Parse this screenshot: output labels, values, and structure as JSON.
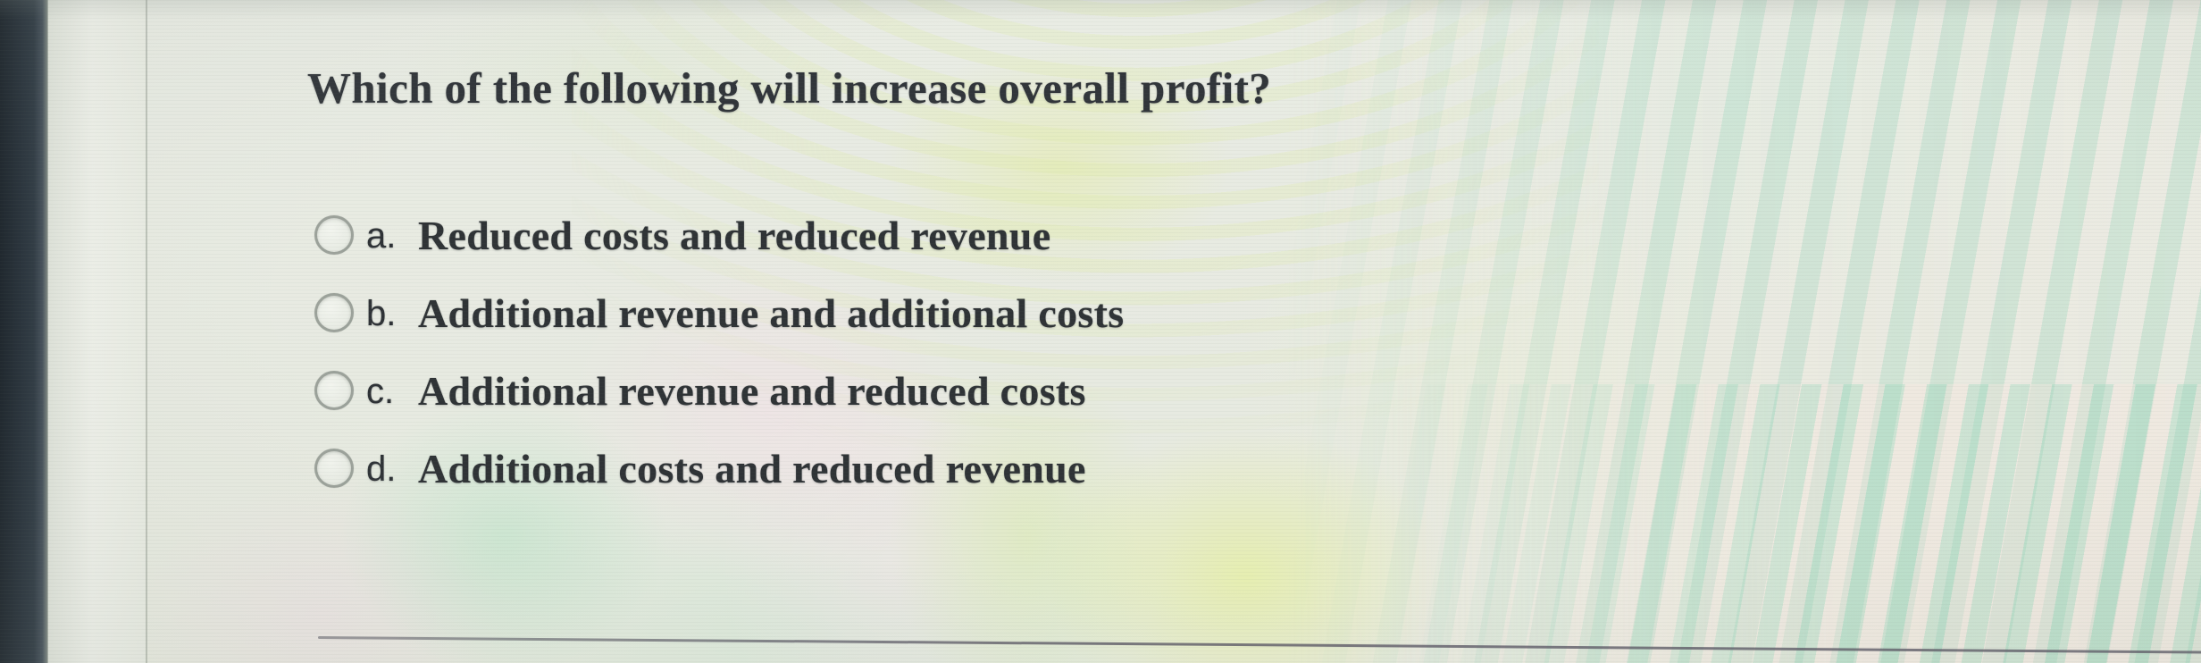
{
  "colors": {
    "background_base": "#e8ebe3",
    "text": "#2f3336",
    "radio_border": "#7a827a",
    "left_bezel": "#27313a",
    "panel_divider": "#8a9288",
    "separator_line": "#5c5a66",
    "moire_mint": "#98d4b8",
    "moire_pink": "#f6dcea",
    "moire_yellow_green": "#e4f08a"
  },
  "question": {
    "title": "Which of the following will increase overall profit?",
    "options": [
      {
        "letter": "a.",
        "text": "Reduced costs and reduced revenue",
        "state": "unselected"
      },
      {
        "letter": "b.",
        "text": "Additional revenue and additional costs",
        "state": "unselected"
      },
      {
        "letter": "c.",
        "text": "Additional revenue and reduced costs",
        "state": "unselected"
      },
      {
        "letter": "d.",
        "text": "Additional costs and reduced revenue",
        "state": "unselected"
      }
    ]
  }
}
